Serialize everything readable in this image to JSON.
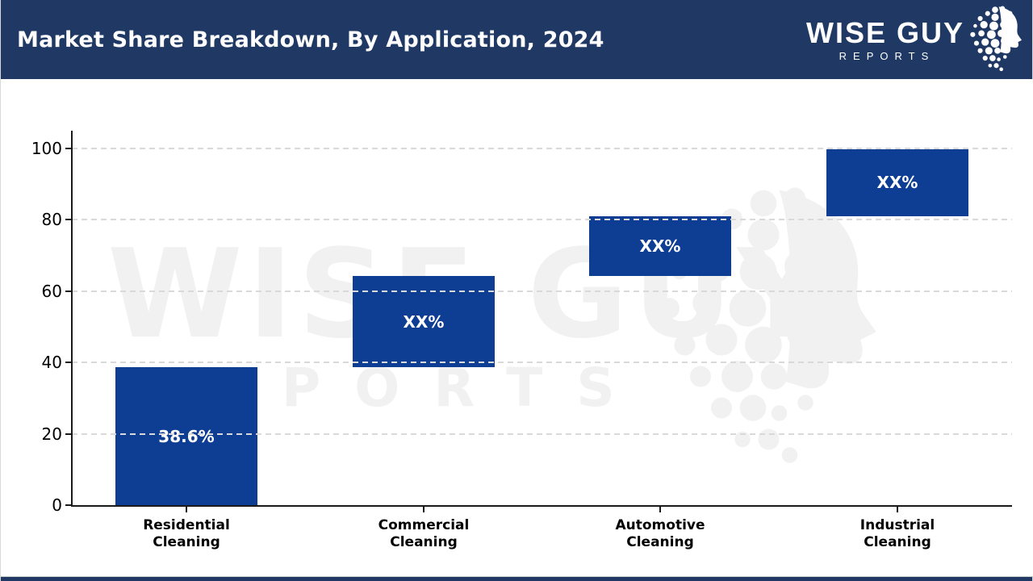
{
  "header": {
    "title": "Market Share Breakdown, By Application, 2024",
    "logo": {
      "line1": "WISE GUY",
      "line2": "REPORTS"
    }
  },
  "watermark": {
    "line1": "WISE GUY",
    "line2": "REPORTS"
  },
  "chart_data": {
    "type": "bar",
    "subtype": "waterfall",
    "title": "Market Share Breakdown, By Application, 2024",
    "categories": [
      "Residential Cleaning",
      "Commercial Cleaning",
      "Automotive Cleaning",
      "Industrial Cleaning"
    ],
    "bars": [
      {
        "start": 0,
        "end": 38.6,
        "label": "38.6%"
      },
      {
        "start": 38.6,
        "end": 64.3,
        "label": "XX%"
      },
      {
        "start": 64.3,
        "end": 81.0,
        "label": "XX%"
      },
      {
        "start": 81.0,
        "end": 99.8,
        "label": "XX%"
      }
    ],
    "yticks": [
      0,
      20,
      40,
      60,
      80,
      100
    ],
    "ylim": [
      0,
      105
    ],
    "xlabel": "",
    "ylabel": "",
    "grid": "horizontal-dashed",
    "legend": "none"
  },
  "colors": {
    "header_bg": "#1f3864",
    "bar": "#0d3e94",
    "grid": "#d9d9d9",
    "watermark": "#f1f1f1",
    "footer_bg": "#1f3864"
  }
}
